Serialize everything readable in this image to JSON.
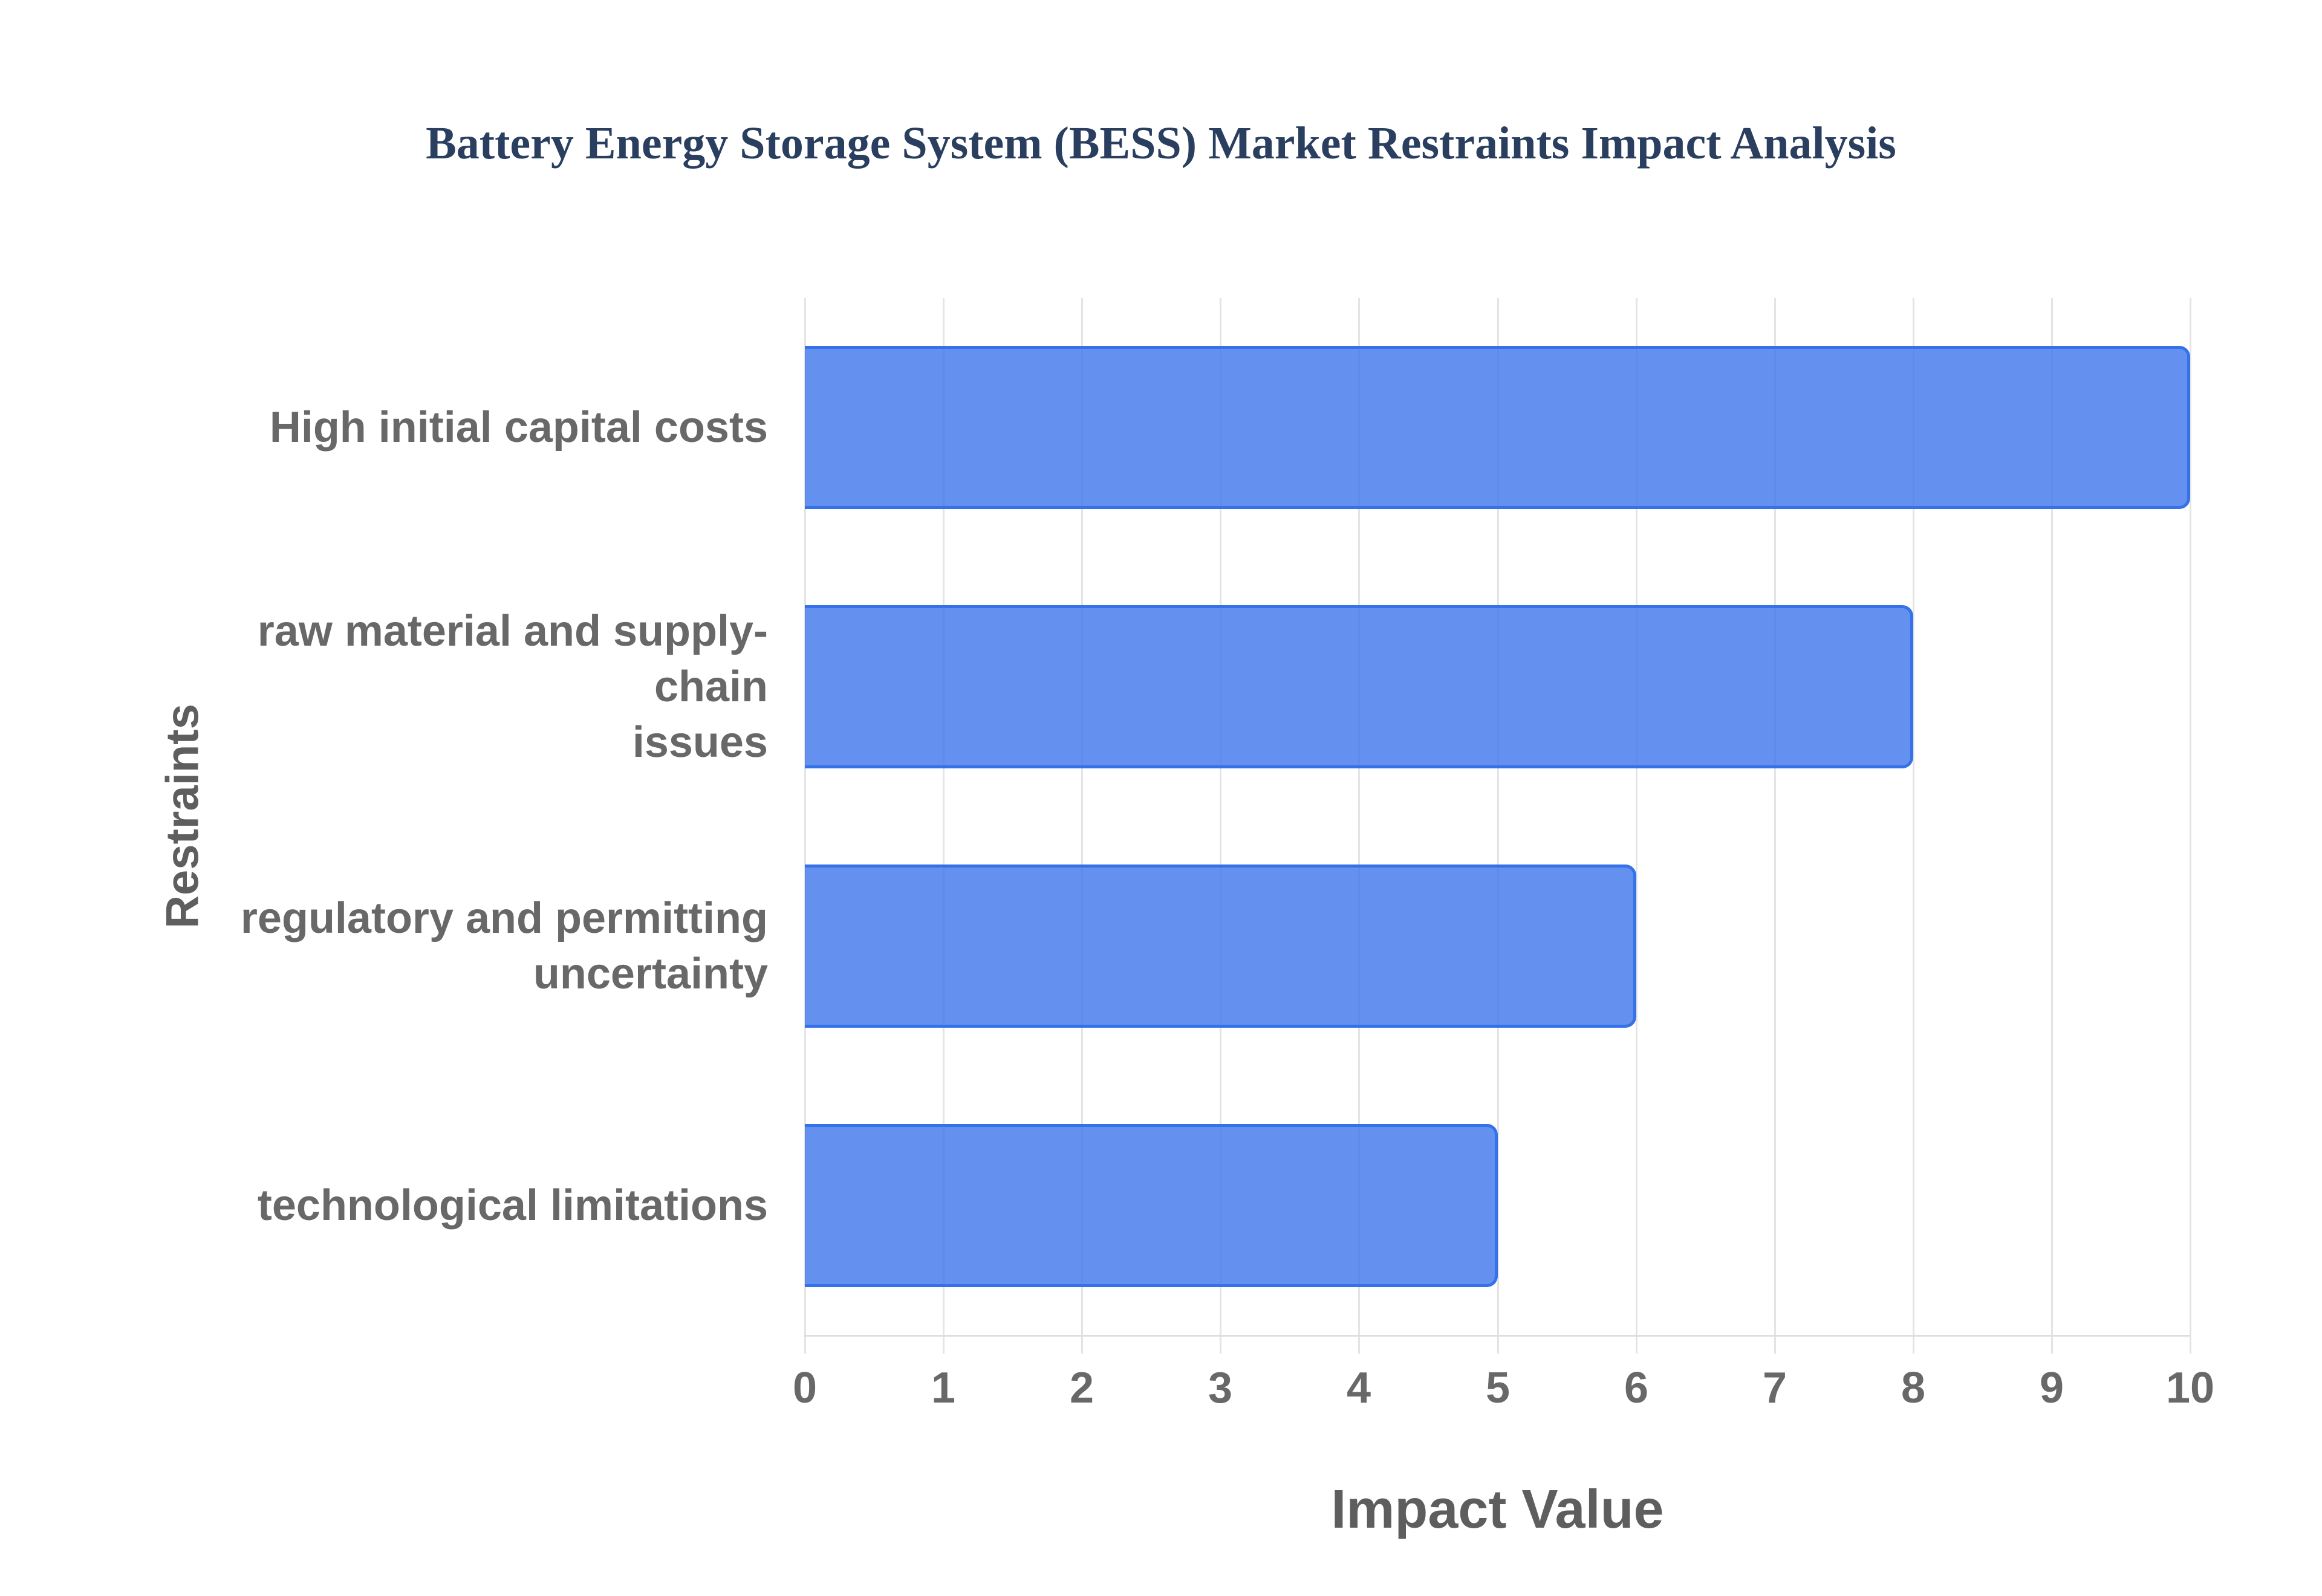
{
  "chart_data": {
    "type": "bar",
    "orientation": "horizontal",
    "title": "Battery Energy Storage System (BESS) Market Restraints Impact Analysis",
    "xlabel": "Impact Value",
    "ylabel": "Restraints",
    "categories": [
      "High initial capital costs",
      "raw material and supply-chain issues",
      "regulatory and permitting uncertainty",
      "technological limitations"
    ],
    "category_display_lines": [
      [
        "High initial capital costs"
      ],
      [
        "raw material and supply-chain",
        "issues"
      ],
      [
        "regulatory and permitting",
        "uncertainty"
      ],
      [
        "technological limitations"
      ]
    ],
    "values": [
      10,
      8,
      6,
      5
    ],
    "xlim": [
      0,
      10
    ],
    "xticks": [
      "0",
      "1",
      "2",
      "3",
      "4",
      "5",
      "6",
      "7",
      "8",
      "9",
      "10"
    ],
    "grid": true,
    "legend": false,
    "colors": {
      "bar_fill": "rgba(61,118,235,0.8)",
      "bar_border": "#3571e8",
      "title_text": "#2a3f5f",
      "axis_text": "#686868",
      "axis_title_text": "#5e5e5e",
      "gridline": "#e4e4e4",
      "background": "#ffffff"
    }
  }
}
